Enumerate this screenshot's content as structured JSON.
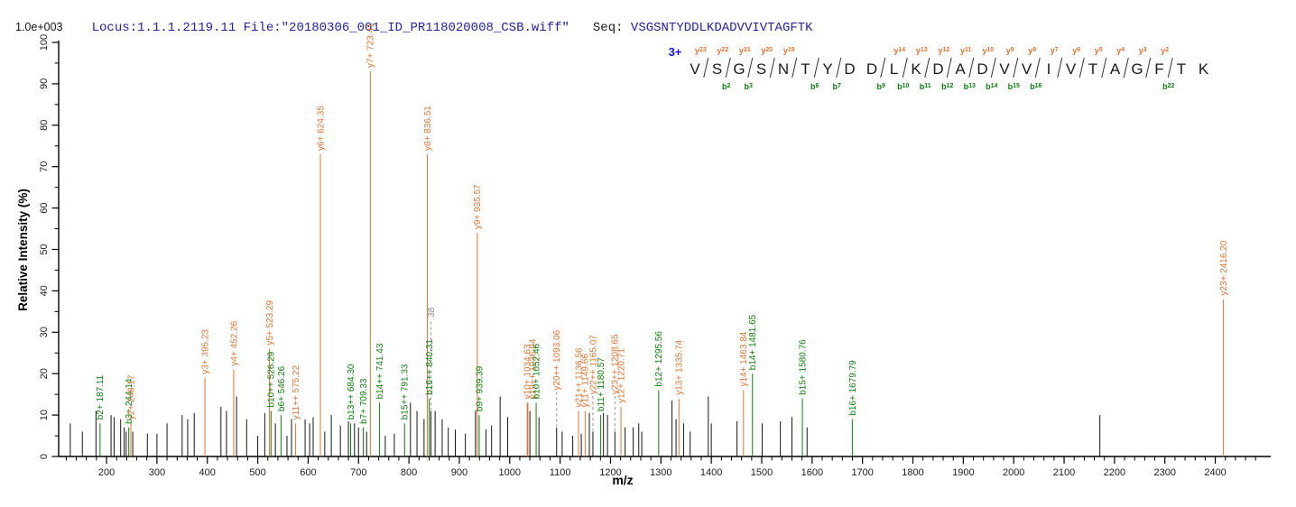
{
  "header": {
    "locus_file": "Locus:1.1.1.2119.11 File:\"20180306_001_ID_PR118020008_CSB.wiff\"",
    "seq_label": "Seq: ",
    "seq_value": "VSGSNTYDDLKDADVVIVTAGFTK"
  },
  "chart_data": {
    "type": "bar",
    "subtype": "ms2-spectrum-stick-plot",
    "title": "",
    "xlabel": "m/z",
    "ylabel": "Relative  Intensity (%)",
    "y_scale_note": "1.0e+003",
    "xlim": [
      105,
      2510
    ],
    "ylim": [
      0,
      100
    ],
    "grid": false,
    "x_ticks": [
      200,
      300,
      400,
      500,
      600,
      700,
      800,
      900,
      1000,
      1100,
      1200,
      1300,
      1400,
      1500,
      1600,
      1700,
      1800,
      1900,
      2000,
      2100,
      2200,
      2300,
      2400
    ],
    "x_minor_step": 20,
    "y_ticks": [
      0,
      10,
      20,
      30,
      40,
      50,
      60,
      70,
      80,
      90,
      100
    ],
    "colors": {
      "y_ion": "#DB7434",
      "b_ion": "#0E7D0E",
      "black_peak": "#141414",
      "navy": "#2323A0",
      "charge_blue": "#1414DC",
      "gray_dashed": "#8F8F8F",
      "axis": "#000000"
    },
    "peptide": {
      "charge": "3+",
      "sequence": "VSGSNTYDDLKDADVVIVTAGFTK",
      "boundaries": [
        {
          "pos": 1,
          "y": "y23"
        },
        {
          "pos": 2,
          "y": "y22",
          "b": "b2"
        },
        {
          "pos": 3,
          "y": "y21",
          "b": "b3"
        },
        {
          "pos": 4,
          "y": "y20"
        },
        {
          "pos": 5,
          "y": "y19"
        },
        {
          "pos": 6,
          "b": "b6"
        },
        {
          "pos": 7,
          "b": "b7"
        },
        {
          "pos": 9,
          "b": "b9"
        },
        {
          "pos": 10,
          "y": "y14",
          "b": "b10"
        },
        {
          "pos": 11,
          "y": "y13",
          "b": "b11"
        },
        {
          "pos": 12,
          "y": "y12",
          "b": "b12"
        },
        {
          "pos": 13,
          "y": "y11",
          "b": "b13"
        },
        {
          "pos": 14,
          "y": "y10",
          "b": "b14"
        },
        {
          "pos": 15,
          "y": "y9",
          "b": "b15"
        },
        {
          "pos": 16,
          "y": "y8",
          "b": "b16"
        },
        {
          "pos": 17,
          "y": "y7"
        },
        {
          "pos": 18,
          "y": "y6"
        },
        {
          "pos": 19,
          "y": "y5"
        },
        {
          "pos": 20,
          "y": "y4"
        },
        {
          "pos": 21,
          "y": "y3"
        },
        {
          "pos": 22,
          "y": "y2",
          "b": "b22"
        }
      ]
    },
    "labeled_peaks": [
      {
        "label": "b2+ 187.11",
        "mz": 187.11,
        "intensity": 8,
        "series": "b"
      },
      {
        "label": "b3+ 244.14",
        "mz": 244.14,
        "intensity": 7,
        "series": "b"
      },
      {
        "label": "y2+ 248.17",
        "mz": 248.17,
        "intensity": 8,
        "series": "y"
      },
      {
        "label": "y3+ 395.23",
        "mz": 395.23,
        "intensity": 19,
        "series": "y"
      },
      {
        "label": "y4+ 452.26",
        "mz": 452.26,
        "intensity": 21,
        "series": "y"
      },
      {
        "label": "y5+ 523.29",
        "mz": 523.29,
        "intensity": 26,
        "series": "y"
      },
      {
        "label": "b10++ 526.29",
        "mz": 526.29,
        "intensity": 11,
        "series": "b"
      },
      {
        "label": "b6+ 546.26",
        "mz": 546.26,
        "intensity": 10,
        "series": "b"
      },
      {
        "label": "y11++ 575.22",
        "mz": 575.22,
        "intensity": 8,
        "series": "y"
      },
      {
        "label": "y6+ 624.35",
        "mz": 624.35,
        "intensity": 73,
        "series": "y"
      },
      {
        "label": "b13++ 684.30",
        "mz": 684.3,
        "intensity": 8,
        "series": "b"
      },
      {
        "label": "b7+ 709.33",
        "mz": 709.33,
        "intensity": 7,
        "series": "b"
      },
      {
        "label": "y7+ 723.41",
        "mz": 723.41,
        "intensity": 93,
        "series": "y"
      },
      {
        "label": "b14++ 741.43",
        "mz": 741.43,
        "intensity": 13,
        "series": "b"
      },
      {
        "label": "b15++ 791.33",
        "mz": 791.33,
        "intensity": 8,
        "series": "b"
      },
      {
        "label": "y8+ 836.51",
        "mz": 836.51,
        "intensity": 73,
        "series": "y"
      },
      {
        "label": "b16++ 840.31",
        "mz": 840.31,
        "intensity": 14,
        "series": "b"
      },
      {
        "label": "y9+ 935.57",
        "mz": 935.57,
        "intensity": 54,
        "series": "y"
      },
      {
        "label": "b9+ 939.39",
        "mz": 939.39,
        "intensity": 10,
        "series": "b"
      },
      {
        "label": "y10+ 1034.63",
        "mz": 1034.63,
        "intensity": 13,
        "series": "y"
      },
      {
        "label": "y19++ 1036.04",
        "mz": 1036.04,
        "intensity": 13,
        "series": "y",
        "label_dx": 5
      },
      {
        "label": "b10+ 1052.46",
        "mz": 1052.46,
        "intensity": 13,
        "series": "b"
      },
      {
        "label": "y21++ 1136.56",
        "mz": 1136.56,
        "intensity": 11,
        "series": "y"
      },
      {
        "label": "y11+ 1149.66",
        "mz": 1149.66,
        "intensity": 11,
        "series": "y"
      },
      {
        "label": "b11+ 1180.57",
        "mz": 1180.57,
        "intensity": 10,
        "series": "b"
      },
      {
        "label": "y12+ 1220.71",
        "mz": 1220.71,
        "intensity": 12,
        "series": "y"
      },
      {
        "label": "b12+ 1295.56",
        "mz": 1295.56,
        "intensity": 16,
        "series": "b"
      },
      {
        "label": "y13+ 1335.74",
        "mz": 1335.74,
        "intensity": 14,
        "series": "y"
      },
      {
        "label": "y14+ 1463.84",
        "mz": 1463.84,
        "intensity": 16,
        "series": "y"
      },
      {
        "label": "b14+ 1481.65",
        "mz": 1481.65,
        "intensity": 20,
        "series": "b"
      },
      {
        "label": "b15+ 1580.76",
        "mz": 1580.76,
        "intensity": 14,
        "series": "b"
      },
      {
        "label": "b16+ 1679.79",
        "mz": 1679.79,
        "intensity": 9,
        "series": "b"
      },
      {
        "label": "y23+ 2416.20",
        "mz": 2416.2,
        "intensity": 38,
        "series": "y"
      }
    ],
    "dashed_peaks": [
      {
        "label": ".38",
        "mz": 843.5,
        "label_intensity": 33,
        "peak_intensity": 11,
        "label_color": "#909090"
      },
      {
        "label": "y20++ 1093.06",
        "mz": 1093.06,
        "label_intensity": 16,
        "peak_intensity": 7,
        "label_color": "#DB7434"
      },
      {
        "label": "y22++ 1165.07",
        "mz": 1165.07,
        "label_intensity": 15,
        "peak_intensity": 6,
        "label_color": "#DB7434"
      },
      {
        "label": "y23++ 1208.65",
        "mz": 1208.65,
        "label_intensity": 15,
        "peak_intensity": 6,
        "label_color": "#DB7434"
      }
    ],
    "unlabeled_peaks": [
      [
        128,
        8
      ],
      [
        152,
        6
      ],
      [
        179,
        11
      ],
      [
        209,
        10
      ],
      [
        215,
        9.5
      ],
      [
        228,
        9
      ],
      [
        235,
        7
      ],
      [
        239,
        6
      ],
      [
        252,
        6
      ],
      [
        281,
        5.5
      ],
      [
        300,
        5.5
      ],
      [
        320,
        8
      ],
      [
        350,
        10
      ],
      [
        361,
        9
      ],
      [
        374,
        10.5
      ],
      [
        427,
        12
      ],
      [
        438,
        11
      ],
      [
        458,
        14.5
      ],
      [
        478,
        9
      ],
      [
        500,
        5
      ],
      [
        514,
        10.5
      ],
      [
        535,
        8
      ],
      [
        558,
        5
      ],
      [
        567,
        9
      ],
      [
        594,
        9
      ],
      [
        603,
        8
      ],
      [
        610,
        9.5
      ],
      [
        633,
        6
      ],
      [
        646,
        10
      ],
      [
        664,
        7.5
      ],
      [
        680,
        8.5
      ],
      [
        692,
        8
      ],
      [
        700,
        7
      ],
      [
        716,
        6
      ],
      [
        753,
        5
      ],
      [
        771,
        5.5
      ],
      [
        803,
        13
      ],
      [
        816,
        11
      ],
      [
        830,
        9
      ],
      [
        852,
        11
      ],
      [
        866,
        9
      ],
      [
        878,
        7
      ],
      [
        892,
        6.5
      ],
      [
        912,
        5.5
      ],
      [
        932,
        11
      ],
      [
        953,
        6.5
      ],
      [
        964,
        7.5
      ],
      [
        981,
        14.5
      ],
      [
        996,
        9.5
      ],
      [
        1040,
        11
      ],
      [
        1058,
        9.5
      ],
      [
        1104,
        6
      ],
      [
        1125,
        5
      ],
      [
        1142,
        5.5
      ],
      [
        1158,
        10.5
      ],
      [
        1186,
        10.5
      ],
      [
        1194,
        10
      ],
      [
        1229,
        7
      ],
      [
        1245,
        7
      ],
      [
        1256,
        8
      ],
      [
        1262,
        6
      ],
      [
        1322,
        13.5
      ],
      [
        1330,
        9
      ],
      [
        1345,
        8
      ],
      [
        1358,
        6
      ],
      [
        1394,
        14.5
      ],
      [
        1400,
        8
      ],
      [
        1451,
        8.5
      ],
      [
        1501,
        8
      ],
      [
        1537,
        8.5
      ],
      [
        1560,
        9.5
      ],
      [
        1590,
        7
      ],
      [
        2171,
        10
      ]
    ]
  }
}
